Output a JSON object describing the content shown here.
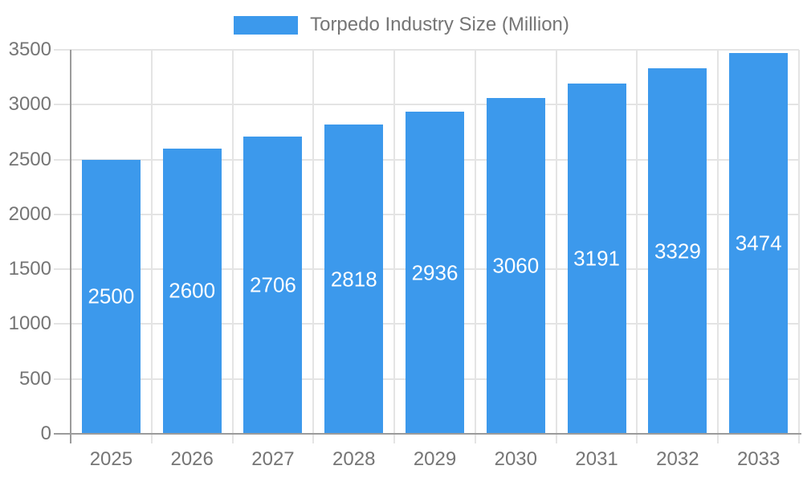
{
  "chart_data": {
    "type": "bar",
    "title": "Torpedo Industry Size (Million)",
    "categories": [
      "2025",
      "2026",
      "2027",
      "2028",
      "2029",
      "2030",
      "2031",
      "2032",
      "2033"
    ],
    "values": [
      2500,
      2600,
      2706,
      2818,
      2936,
      3060,
      3191,
      3329,
      3474
    ],
    "xlabel": "",
    "ylabel": "",
    "ylim": [
      0,
      3500
    ],
    "yticks": [
      0,
      500,
      1000,
      1500,
      2000,
      2500,
      3000,
      3500
    ],
    "grid": true,
    "legend_position": "top-center",
    "bar_value_labels": "centered-inside-white"
  },
  "legend": {
    "label": "Torpedo Industry Size (Million)"
  },
  "colors": {
    "bar": "#3C99EC",
    "grid_line": "#e4e4e4",
    "axis_line": "#9b9b9b",
    "axis_text": "#757575",
    "bar_label_text": "#ffffff",
    "background": "#ffffff"
  }
}
